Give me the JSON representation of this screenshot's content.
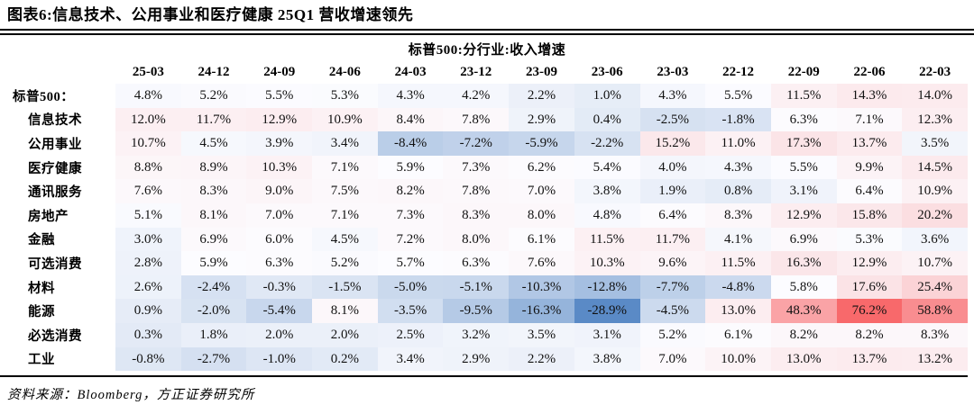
{
  "figure": {
    "title": "图表6:信息技术、公用事业和医疗健康 25Q1 营收增速领先",
    "source": "资料来源：Bloomberg，方正证券研究所"
  },
  "chart_data": {
    "type": "heatmap",
    "title": "标普500:分行业:收入增速",
    "unit": "%",
    "columns": [
      "25-03",
      "24-12",
      "24-09",
      "24-06",
      "24-03",
      "23-12",
      "23-09",
      "23-06",
      "23-03",
      "22-12",
      "22-09",
      "22-06",
      "22-03"
    ],
    "rows": [
      {
        "label": "标普500：",
        "values": [
          4.8,
          5.2,
          5.5,
          5.3,
          4.3,
          4.2,
          2.2,
          1.0,
          4.3,
          5.5,
          11.5,
          14.3,
          14.0
        ]
      },
      {
        "label": "信息技术",
        "values": [
          12.0,
          11.7,
          12.9,
          10.9,
          8.4,
          7.8,
          2.9,
          0.4,
          -2.5,
          -1.8,
          6.3,
          7.1,
          12.3
        ]
      },
      {
        "label": "公用事业",
        "values": [
          10.7,
          4.5,
          3.9,
          3.4,
          -8.4,
          -7.2,
          -5.9,
          -2.2,
          15.2,
          11.0,
          17.3,
          13.7,
          3.5
        ]
      },
      {
        "label": "医疗健康",
        "values": [
          8.8,
          8.9,
          10.3,
          7.1,
          5.9,
          7.3,
          6.2,
          5.4,
          4.0,
          4.3,
          5.5,
          9.9,
          14.5
        ]
      },
      {
        "label": "通讯服务",
        "values": [
          7.6,
          8.3,
          9.0,
          7.5,
          8.2,
          7.8,
          7.0,
          3.8,
          1.9,
          0.8,
          3.1,
          6.4,
          10.9
        ]
      },
      {
        "label": "房地产",
        "values": [
          5.1,
          8.1,
          7.0,
          7.1,
          7.3,
          8.3,
          8.0,
          4.8,
          6.4,
          8.3,
          12.9,
          15.8,
          20.2
        ]
      },
      {
        "label": "金融",
        "values": [
          3.0,
          6.9,
          6.0,
          4.5,
          7.2,
          8.0,
          6.1,
          11.5,
          11.7,
          4.1,
          6.9,
          5.3,
          3.6
        ]
      },
      {
        "label": "可选消费",
        "values": [
          2.8,
          5.9,
          6.3,
          5.2,
          5.7,
          6.3,
          7.6,
          10.3,
          9.6,
          11.5,
          16.3,
          12.9,
          10.7
        ]
      },
      {
        "label": "材料",
        "values": [
          2.6,
          -2.4,
          -0.3,
          -1.5,
          -5.0,
          -5.1,
          -10.3,
          -12.8,
          -7.7,
          -4.8,
          5.8,
          17.6,
          25.4
        ]
      },
      {
        "label": "能源",
        "values": [
          0.9,
          -2.0,
          -5.4,
          8.1,
          -3.5,
          -9.5,
          -16.3,
          -28.9,
          -4.5,
          13.0,
          48.3,
          76.2,
          58.8
        ]
      },
      {
        "label": "必选消费",
        "values": [
          0.3,
          1.8,
          2.0,
          2.0,
          2.5,
          3.2,
          3.5,
          3.1,
          5.2,
          6.1,
          8.2,
          8.2,
          8.3
        ]
      },
      {
        "label": "工业",
        "values": [
          -0.8,
          -2.7,
          -1.0,
          0.2,
          3.4,
          2.9,
          2.2,
          3.8,
          7.0,
          10.0,
          13.0,
          13.7,
          13.2
        ]
      }
    ],
    "color_scale": {
      "min_value": -28.9,
      "min_color": "#5A8AC6",
      "mid_value": 5.7,
      "mid_color": "#FCFCFF",
      "max_value": 76.2,
      "max_color": "#F8696B"
    },
    "value_format": "one_decimal_percent",
    "layout": {
      "grid": false,
      "legend": "none",
      "first_row_unindented": true
    }
  }
}
